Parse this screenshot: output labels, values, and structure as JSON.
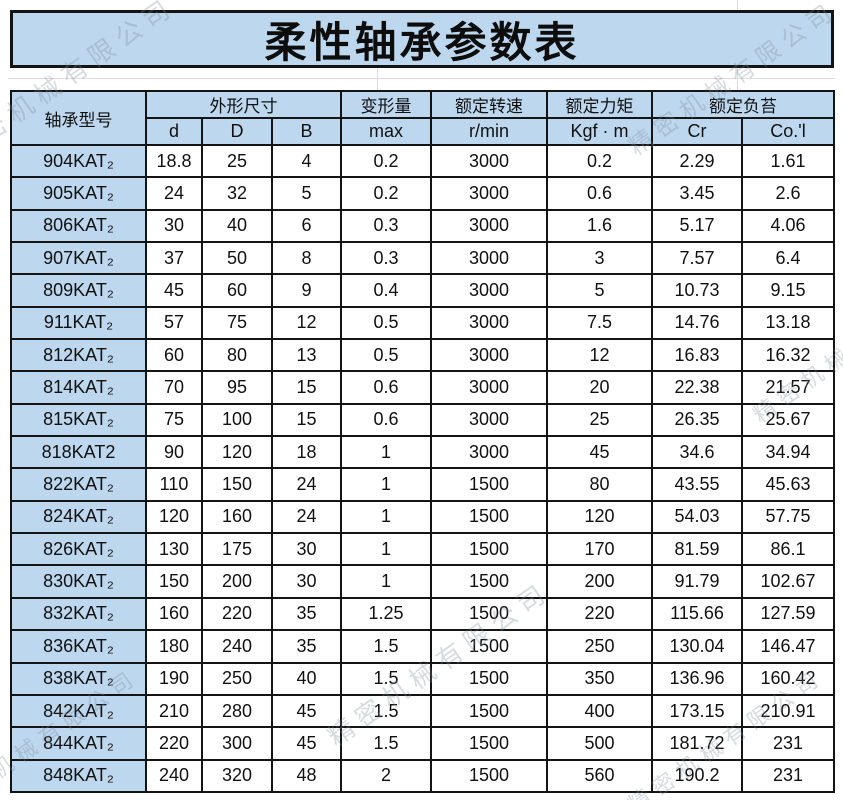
{
  "title": "柔性轴承参数表",
  "header": {
    "model": "轴承型号",
    "dims_group": "外形尺寸",
    "dims_subs": [
      "d",
      "D",
      "B"
    ],
    "deform_group": "变形量",
    "deform_sub": "max",
    "speed_group": "额定转速",
    "speed_sub": "r/min",
    "torque_group": "额定力矩",
    "torque_sub": "Kgf · m",
    "load_group": "额定负苔",
    "load_subs": [
      "Cr",
      "Co.'l"
    ]
  },
  "chart_data": {
    "type": "table",
    "title": "柔性轴承参数表",
    "columns": [
      "轴承型号",
      "d",
      "D",
      "B",
      "max (变形量)",
      "r/min (额定转速)",
      "Kgf·m (额定力矩)",
      "Cr (额定负苔)",
      "Co.'l (额定负苔)"
    ],
    "rows": [
      [
        "904KAT₂",
        "18.8",
        "25",
        "4",
        "0.2",
        "3000",
        "0.2",
        "2.29",
        "1.61"
      ],
      [
        "905KAT₂",
        "24",
        "32",
        "5",
        "0.2",
        "3000",
        "0.6",
        "3.45",
        "2.6"
      ],
      [
        "806KAT₂",
        "30",
        "40",
        "6",
        "0.3",
        "3000",
        "1.6",
        "5.17",
        "4.06"
      ],
      [
        "907KAT₂",
        "37",
        "50",
        "8",
        "0.3",
        "3000",
        "3",
        "7.57",
        "6.4"
      ],
      [
        "809KAT₂",
        "45",
        "60",
        "9",
        "0.4",
        "3000",
        "5",
        "10.73",
        "9.15"
      ],
      [
        "911KAT₂",
        "57",
        "75",
        "12",
        "0.5",
        "3000",
        "7.5",
        "14.76",
        "13.18"
      ],
      [
        "812KAT₂",
        "60",
        "80",
        "13",
        "0.5",
        "3000",
        "12",
        "16.83",
        "16.32"
      ],
      [
        "814KAT₂",
        "70",
        "95",
        "15",
        "0.6",
        "3000",
        "20",
        "22.38",
        "21.57"
      ],
      [
        "815KAT₂",
        "75",
        "100",
        "15",
        "0.6",
        "3000",
        "25",
        "26.35",
        "25.67"
      ],
      [
        "818KAT2",
        "90",
        "120",
        "18",
        "1",
        "3000",
        "45",
        "34.6",
        "34.94"
      ],
      [
        "822KAT₂",
        "110",
        "150",
        "24",
        "1",
        "1500",
        "80",
        "43.55",
        "45.63"
      ],
      [
        "824KAT₂",
        "120",
        "160",
        "24",
        "1",
        "1500",
        "120",
        "54.03",
        "57.75"
      ],
      [
        "826KAT₂",
        "130",
        "175",
        "30",
        "1",
        "1500",
        "170",
        "81.59",
        "86.1"
      ],
      [
        "830KAT₂",
        "150",
        "200",
        "30",
        "1",
        "1500",
        "200",
        "91.79",
        "102.67"
      ],
      [
        "832KAT₂",
        "160",
        "220",
        "35",
        "1.25",
        "1500",
        "220",
        "115.66",
        "127.59"
      ],
      [
        "836KAT₂",
        "180",
        "240",
        "35",
        "1.5",
        "1500",
        "250",
        "130.04",
        "146.47"
      ],
      [
        "838KAT₂",
        "190",
        "250",
        "40",
        "1.5",
        "1500",
        "350",
        "136.96",
        "160.42"
      ],
      [
        "842KAT₂",
        "210",
        "280",
        "45",
        "1.5",
        "1500",
        "400",
        "173.15",
        "210.91"
      ],
      [
        "844KAT₂",
        "220",
        "300",
        "45",
        "1.5",
        "1500",
        "500",
        "181.72",
        "231"
      ],
      [
        "848KAT₂",
        "240",
        "320",
        "48",
        "2",
        "1500",
        "560",
        "190.2",
        "231"
      ]
    ]
  },
  "watermark": {
    "text": "精密机械有限公司"
  },
  "colors": {
    "cell_blue": "#BDD7EE",
    "border_black": "#141414",
    "text_black": "#111111",
    "gridline_gray": "#DCDCDC"
  }
}
